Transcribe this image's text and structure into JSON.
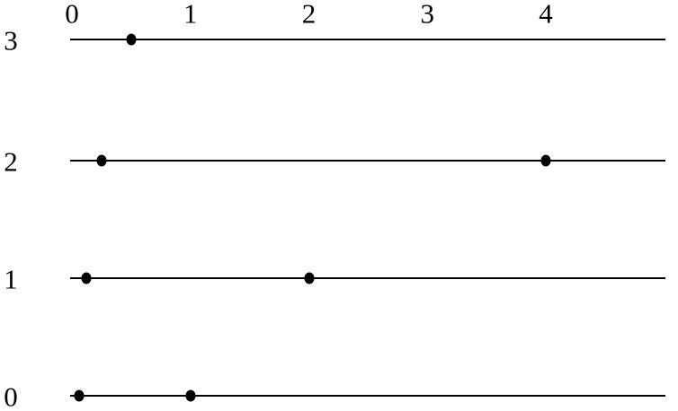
{
  "chart_data": {
    "type": "scatter",
    "variant": "horizontal-number-line-dot-plot",
    "title": "",
    "x_axis": {
      "position": "top",
      "tick_labels": [
        "0",
        "1",
        "2",
        "3",
        "4"
      ],
      "tick_values": [
        0,
        1,
        2,
        3,
        4
      ],
      "range": [
        -0.02,
        5.01
      ],
      "grid": false
    },
    "y_axis": {
      "position": "left",
      "row_labels": [
        "3",
        "2",
        "1",
        "0"
      ]
    },
    "rows": [
      {
        "label": "3",
        "points": [
          0.5
        ]
      },
      {
        "label": "2",
        "points": [
          0.25,
          4.0
        ]
      },
      {
        "label": "1",
        "points": [
          0.125,
          2.0
        ]
      },
      {
        "label": "0",
        "points": [
          0.0625,
          1.0
        ]
      }
    ],
    "marker": {
      "shape": "filled-dot",
      "color": "#000000"
    },
    "line_color": "#000000",
    "text_color": "#000000",
    "background_color": "#ffffff",
    "legend_position": "none"
  }
}
